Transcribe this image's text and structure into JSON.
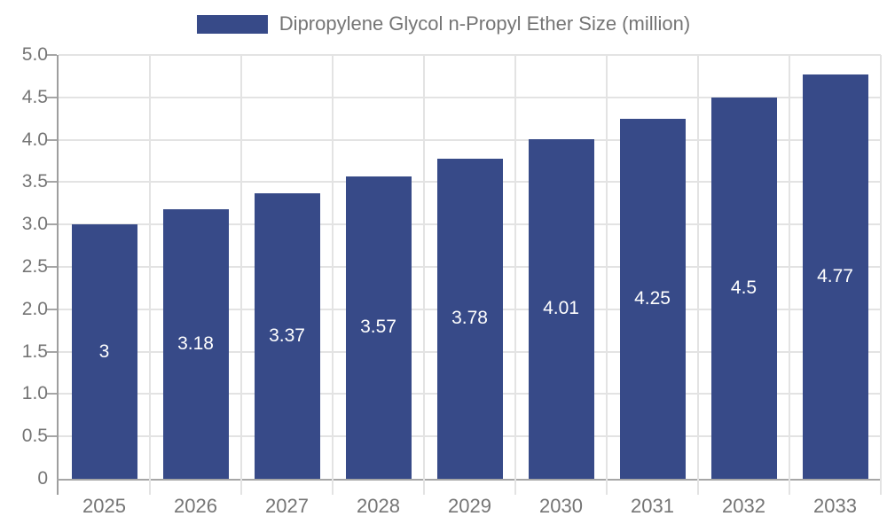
{
  "chart_data": {
    "type": "bar",
    "title": "Dipropylene Glycol n-Propyl Ether Size (million)",
    "legend": {
      "label": "Dipropylene Glycol n-Propyl Ether Size (million)",
      "position": "top-center"
    },
    "categories": [
      "2025",
      "2026",
      "2027",
      "2028",
      "2029",
      "2030",
      "2031",
      "2032",
      "2033"
    ],
    "series": [
      {
        "name": "Dipropylene Glycol n-Propyl Ether Size (million)",
        "values": [
          3,
          3.18,
          3.37,
          3.57,
          3.78,
          4.01,
          4.25,
          4.5,
          4.77
        ]
      }
    ],
    "bar_value_labels": [
      "3",
      "3.18",
      "3.37",
      "3.57",
      "3.78",
      "4.01",
      "4.25",
      "4.5",
      "4.77"
    ],
    "xlabel": "",
    "ylabel": "",
    "ylim": [
      0,
      5
    ],
    "ytick_step": 0.5,
    "ytick_labels": [
      "0",
      "0.5",
      "1.0",
      "1.5",
      "2.0",
      "2.5",
      "3.0",
      "3.5",
      "4.0",
      "4.5",
      "5.0"
    ],
    "grid": true,
    "value_labels_inside_bars": true,
    "colors": {
      "bar": "#374a88",
      "grid": "#e3e3e3",
      "axis": "#a6a6a6",
      "axis_dark": "#9e9e9e",
      "text": "#757575",
      "bar_label": "#ffffff",
      "background": "#ffffff"
    }
  }
}
